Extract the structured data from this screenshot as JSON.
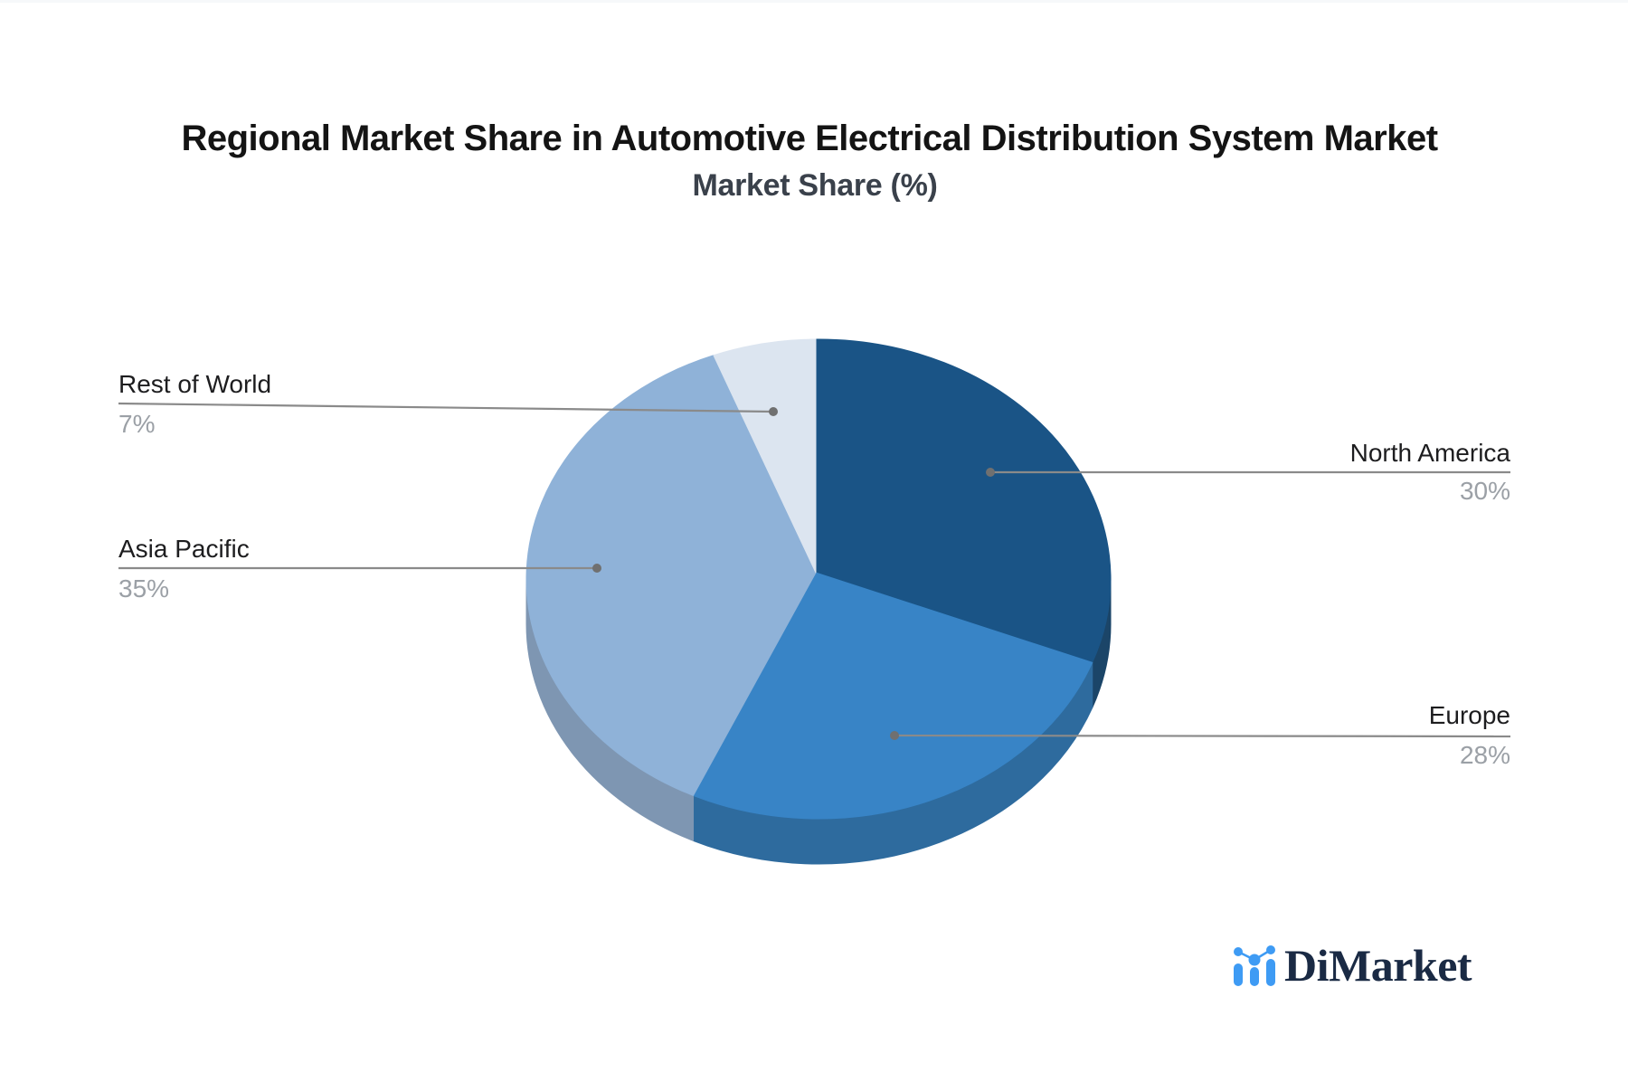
{
  "header": {
    "title": "Regional Market Share in Automotive Electrical Distribution System Market",
    "subtitle": "Market Share (%)"
  },
  "chart_data": {
    "type": "pie",
    "style": "3d-pie",
    "title": "Regional Market Share in Automotive Electrical Distribution System Market",
    "subtitle": "Market Share (%)",
    "unit": "%",
    "start_angle_deg": 0,
    "direction": "clockwise",
    "legend_position": "none",
    "label_style": "outside-with-leader-lines",
    "slices": [
      {
        "label": "North America",
        "value": 30,
        "value_label": "30%",
        "color": "#1a5486",
        "side_color": "#1b4568"
      },
      {
        "label": "Europe",
        "value": 28,
        "value_label": "28%",
        "color": "#3884c6",
        "side_color": "#2e6b9e"
      },
      {
        "label": "Asia Pacific",
        "value": 35,
        "value_label": "35%",
        "color": "#8fb2d8",
        "side_color": "#7e96b2"
      },
      {
        "label": "Rest of World",
        "value": 7,
        "value_label": "7%",
        "color": "#dce5f0",
        "side_color": "#b6c2d2"
      }
    ]
  },
  "logo": {
    "brand": "DiMarket",
    "icon": "bar-chart-with-trend-dots",
    "icon_color": "#3e9bf4",
    "text_color": "#1a2a44"
  },
  "colors": {
    "background": "#ffffff",
    "title": "#141414",
    "subtitle": "#3a414b",
    "label_name": "#1d1d1f",
    "label_value": "#9ba0a6",
    "leader_line": "#8a8a8a",
    "leader_dot": "#707070"
  }
}
